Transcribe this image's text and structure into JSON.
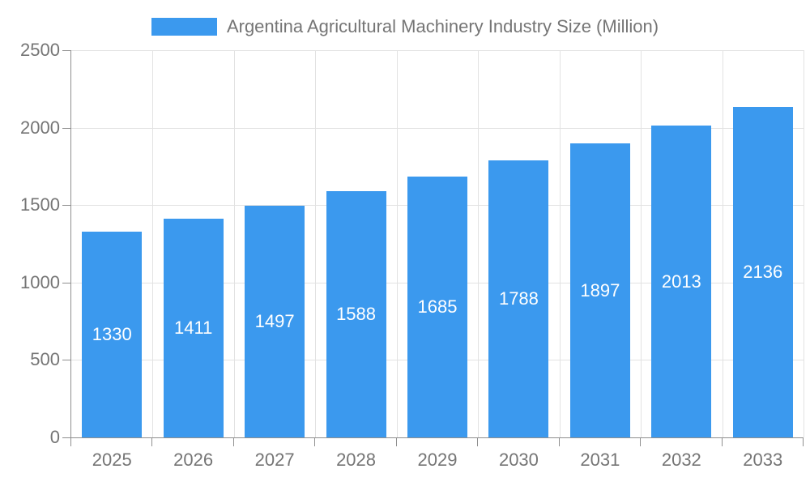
{
  "chart_data": {
    "type": "bar",
    "title": "Argentina Agricultural Machinery Industry Size (Million)",
    "categories": [
      "2025",
      "2026",
      "2027",
      "2028",
      "2029",
      "2030",
      "2031",
      "2032",
      "2033"
    ],
    "values": [
      1330,
      1411,
      1497,
      1588,
      1685,
      1788,
      1897,
      2013,
      2136
    ],
    "xlabel": "",
    "ylabel": "",
    "ylim": [
      0,
      2500
    ],
    "ytick_step": 500,
    "yticks": [
      0,
      500,
      1000,
      1500,
      2000,
      2500
    ],
    "grid": true,
    "legend_position": "top-center",
    "bar_label_position": "inside-center",
    "colors": {
      "bar": "#3b99ee",
      "bar_label": "#ffffff",
      "grid": "#e2e2e2",
      "axis": "#8f8f8f",
      "text": "#757575",
      "background": "#ffffff"
    }
  }
}
